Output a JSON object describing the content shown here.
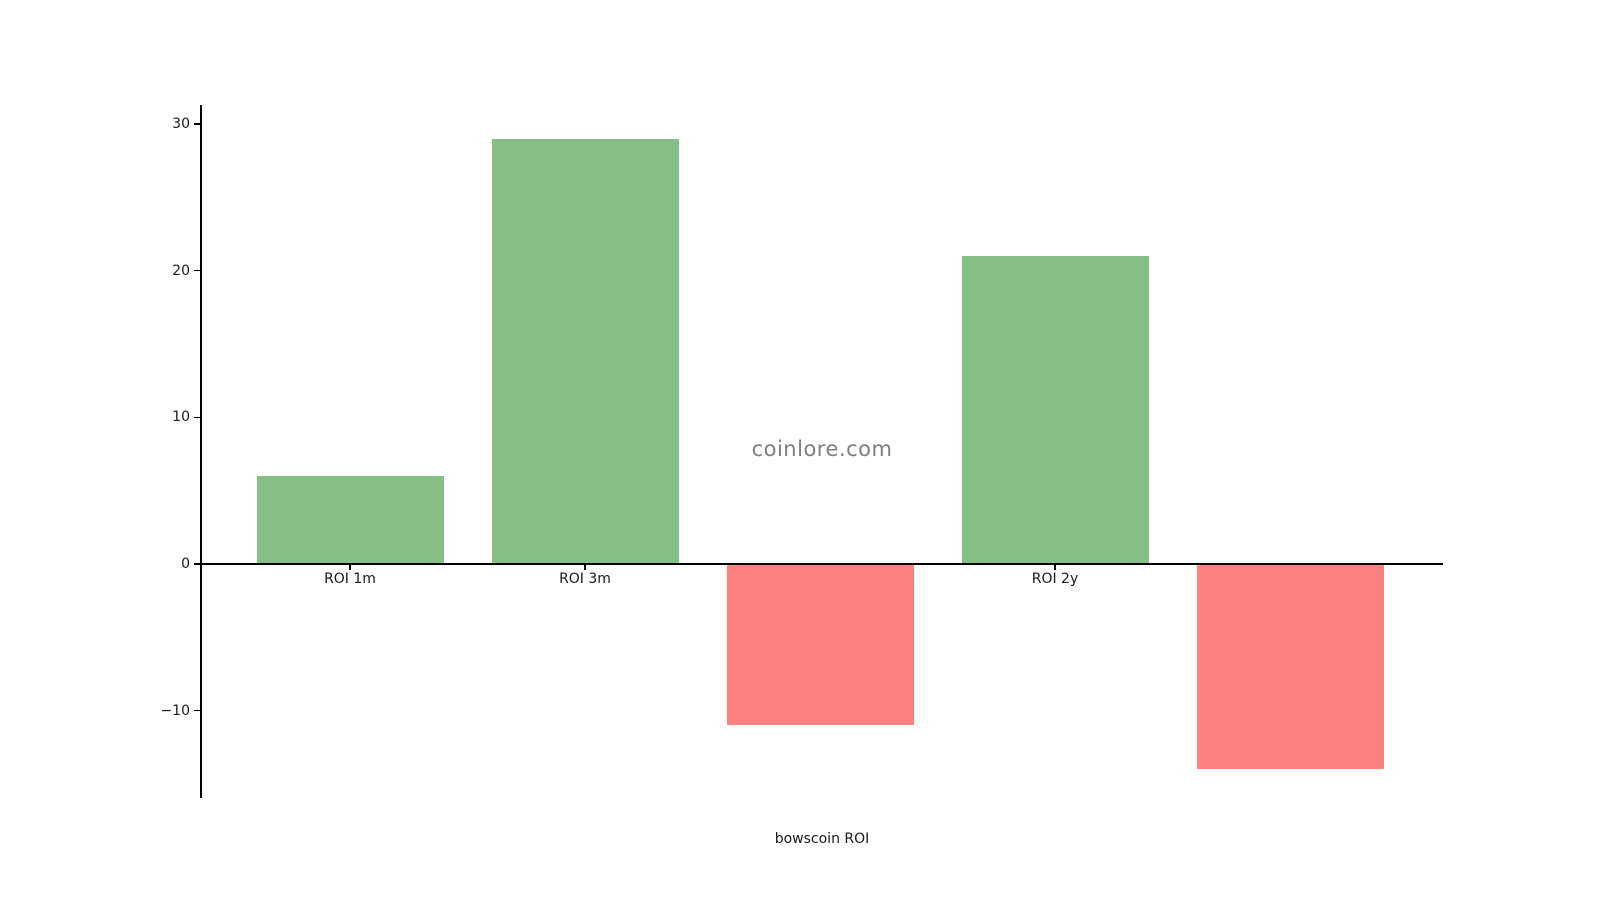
{
  "watermark": {
    "text": "coinlore.com",
    "color": "#7f7f7f"
  },
  "chart_data": {
    "type": "bar",
    "title": "bowscoin ROI",
    "xlabel": "bowscoin ROI",
    "ylabel": "",
    "categories": [
      "ROI 1m",
      "ROI 3m",
      "",
      "ROI 2y",
      ""
    ],
    "values": [
      6,
      29,
      -11,
      21,
      -14
    ],
    "colors": {
      "positive": "#85bf85",
      "negative": "#fc8181"
    },
    "y_ticks": [
      30,
      20,
      10,
      0,
      -10
    ],
    "y_tick_labels": [
      "30",
      "20",
      "10",
      "0",
      "−10"
    ],
    "ylim": [
      -16,
      31.3
    ],
    "grid": false,
    "legend": null,
    "axis_color": "#000000",
    "tick_label_color": "#1a1a1a"
  }
}
